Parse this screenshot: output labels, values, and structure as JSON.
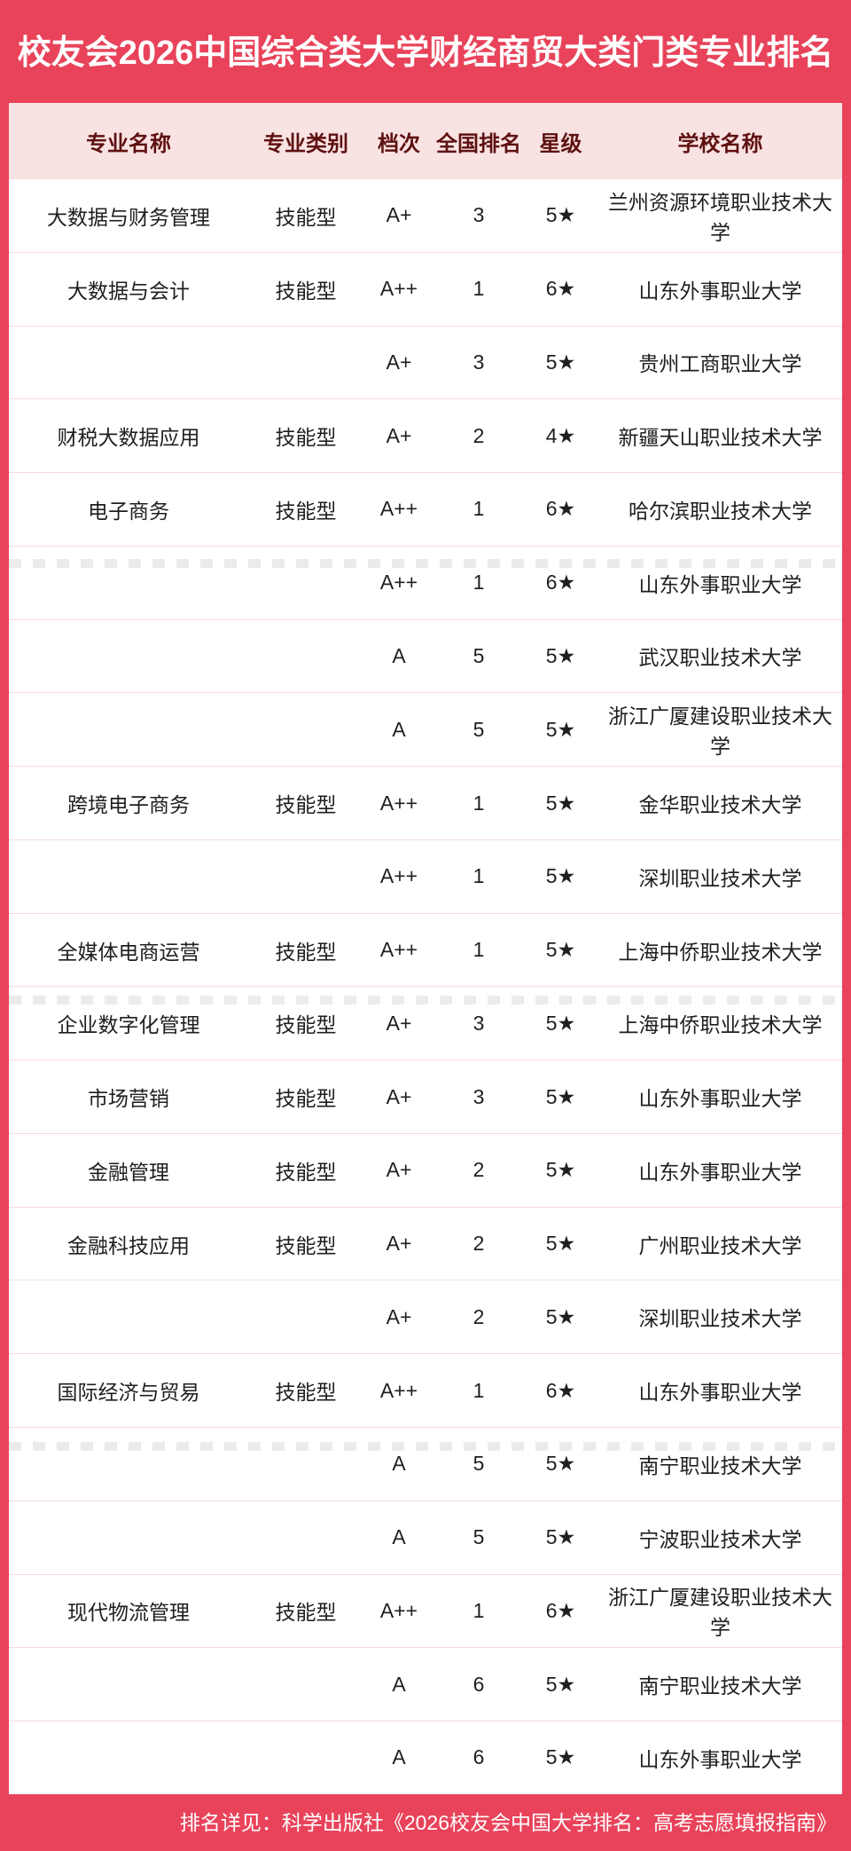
{
  "title": "校友会2026中国综合类大学财经商贸大类门类专业排名",
  "footer": {
    "note": "排名详见：科学出版社《2026校友会中国大学排名：高考志愿填报指南》"
  },
  "colors": {
    "accent_red": "#e8435a",
    "header_bg": "#f9e2e2",
    "header_text": "#5e1111",
    "row_divider": "#f5dcdc",
    "body_text": "#1f1f1f"
  },
  "chart_data": {
    "type": "table",
    "title": "校友会2026中国综合类大学财经商贸大类门类专业排名",
    "columns": [
      "专业名称",
      "专业类别",
      "档次",
      "全国排名",
      "星级",
      "学校名称"
    ],
    "rows": [
      {
        "major": "大数据与财务管理",
        "category": "技能型",
        "grade": "A+",
        "rank": "3",
        "star": "5★",
        "school": "兰州资源环境职业技术大学"
      },
      {
        "major": "大数据与会计",
        "category": "技能型",
        "grade": "A++",
        "rank": "1",
        "star": "6★",
        "school": "山东外事职业大学"
      },
      {
        "major": "",
        "category": "",
        "grade": "A+",
        "rank": "3",
        "star": "5★",
        "school": "贵州工商职业大学"
      },
      {
        "major": "财税大数据应用",
        "category": "技能型",
        "grade": "A+",
        "rank": "2",
        "star": "4★",
        "school": "新疆天山职业技术大学"
      },
      {
        "major": "电子商务",
        "category": "技能型",
        "grade": "A++",
        "rank": "1",
        "star": "6★",
        "school": "哈尔滨职业技术大学"
      },
      {
        "major": "",
        "category": "",
        "grade": "A++",
        "rank": "1",
        "star": "6★",
        "school": "山东外事职业大学"
      },
      {
        "major": "",
        "category": "",
        "grade": "A",
        "rank": "5",
        "star": "5★",
        "school": "武汉职业技术大学"
      },
      {
        "major": "",
        "category": "",
        "grade": "A",
        "rank": "5",
        "star": "5★",
        "school": "浙江广厦建设职业技术大学"
      },
      {
        "major": "跨境电子商务",
        "category": "技能型",
        "grade": "A++",
        "rank": "1",
        "star": "5★",
        "school": "金华职业技术大学"
      },
      {
        "major": "",
        "category": "",
        "grade": "A++",
        "rank": "1",
        "star": "5★",
        "school": "深圳职业技术大学"
      },
      {
        "major": "全媒体电商运营",
        "category": "技能型",
        "grade": "A++",
        "rank": "1",
        "star": "5★",
        "school": "上海中侨职业技术大学"
      },
      {
        "major": "企业数字化管理",
        "category": "技能型",
        "grade": "A+",
        "rank": "3",
        "star": "5★",
        "school": "上海中侨职业技术大学"
      },
      {
        "major": "市场营销",
        "category": "技能型",
        "grade": "A+",
        "rank": "3",
        "star": "5★",
        "school": "山东外事职业大学"
      },
      {
        "major": "金融管理",
        "category": "技能型",
        "grade": "A+",
        "rank": "2",
        "star": "5★",
        "school": "山东外事职业大学"
      },
      {
        "major": "金融科技应用",
        "category": "技能型",
        "grade": "A+",
        "rank": "2",
        "star": "5★",
        "school": "广州职业技术大学"
      },
      {
        "major": "",
        "category": "",
        "grade": "A+",
        "rank": "2",
        "star": "5★",
        "school": "深圳职业技术大学"
      },
      {
        "major": "国际经济与贸易",
        "category": "技能型",
        "grade": "A++",
        "rank": "1",
        "star": "6★",
        "school": "山东外事职业大学"
      },
      {
        "major": "",
        "category": "",
        "grade": "A",
        "rank": "5",
        "star": "5★",
        "school": "南宁职业技术大学"
      },
      {
        "major": "",
        "category": "",
        "grade": "A",
        "rank": "5",
        "star": "5★",
        "school": "宁波职业技术大学"
      },
      {
        "major": "现代物流管理",
        "category": "技能型",
        "grade": "A++",
        "rank": "1",
        "star": "6★",
        "school": "浙江广厦建设职业技术大学"
      },
      {
        "major": "",
        "category": "",
        "grade": "A",
        "rank": "6",
        "star": "5★",
        "school": "南宁职业技术大学"
      },
      {
        "major": "",
        "category": "",
        "grade": "A",
        "rank": "6",
        "star": "5★",
        "school": "山东外事职业大学"
      }
    ]
  }
}
